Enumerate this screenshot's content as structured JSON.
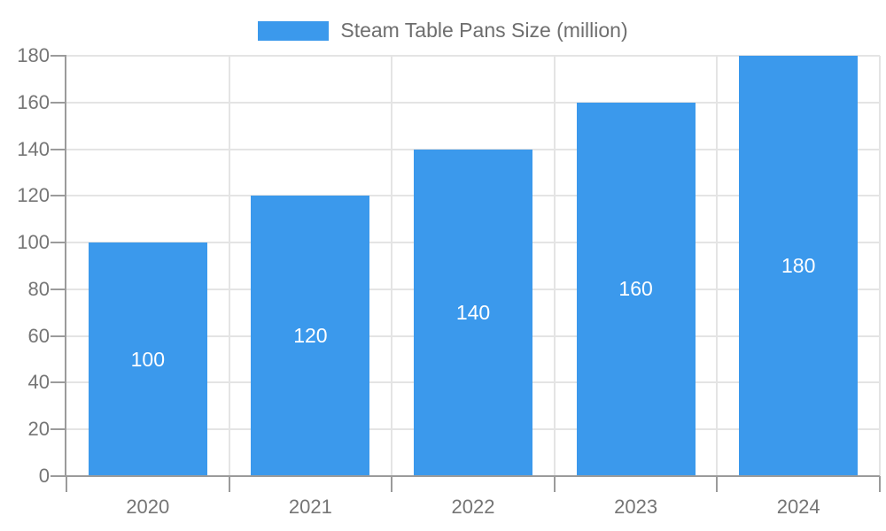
{
  "legend": {
    "label": "Steam Table Pans Size (million)"
  },
  "colors": {
    "bar": "#3B99EC",
    "axis_line": "#9B9B9B",
    "grid_line": "#E4E4E4",
    "axis_text": "#757575",
    "bar_label_text": "#FFFFFF",
    "legend_text": "#6E6E6E"
  },
  "chart_data": {
    "type": "bar",
    "title": "Steam Table Pans Size (million)",
    "categories": [
      "2020",
      "2021",
      "2022",
      "2023",
      "2024"
    ],
    "series": [
      {
        "name": "Steam Table Pans Size (million)",
        "values": [
          100,
          120,
          140,
          160,
          180
        ]
      }
    ],
    "data_labels": [
      "100",
      "120",
      "140",
      "160",
      "180"
    ],
    "xlabel": "",
    "ylabel": "",
    "ylim": [
      0,
      180
    ],
    "yticks": [
      0,
      20,
      40,
      60,
      80,
      100,
      120,
      140,
      160,
      180
    ],
    "grid": "both",
    "legend_position": "top-center",
    "bar_label_position": "center-of-bar"
  }
}
